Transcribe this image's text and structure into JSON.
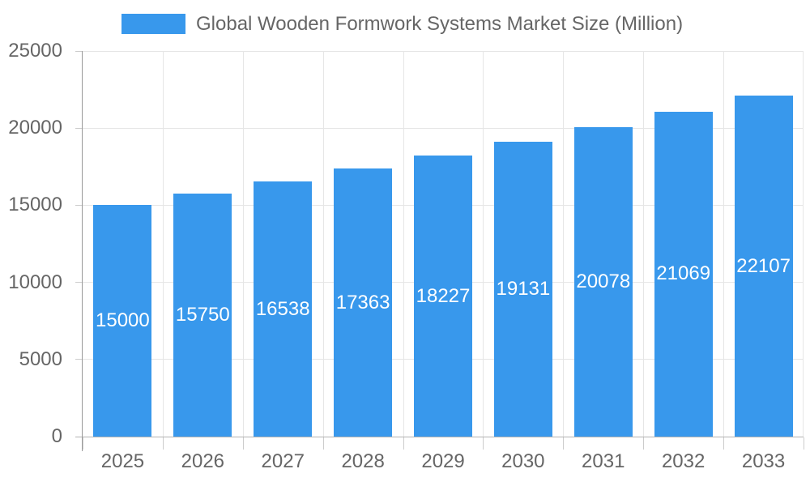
{
  "chart_data": {
    "type": "bar",
    "title": "Global Wooden Formwork Systems Market Size (Million)",
    "legend_label": "Global Wooden Formwork Systems Market Size (Million)",
    "legend_position": "top",
    "categories": [
      "2025",
      "2026",
      "2027",
      "2028",
      "2029",
      "2030",
      "2031",
      "2032",
      "2033"
    ],
    "values": [
      15000,
      15750,
      16538,
      17363,
      18227,
      19131,
      20078,
      21069,
      22107
    ],
    "xlabel": "",
    "ylabel": "",
    "ylim": [
      0,
      25000
    ],
    "yticks": [
      0,
      5000,
      10000,
      15000,
      20000,
      25000
    ],
    "grid": true,
    "bar_value_labels_visible": true,
    "colors": {
      "bar": "#3898EC",
      "bar_label": "#FFFFFF",
      "axis_text": "#666666",
      "grid_line": "#E6E6E6",
      "y_axis_line": "#999999",
      "x_axis_line": "#B3B3B3",
      "tick": "#CCCCCC",
      "background": "#FFFFFF"
    }
  }
}
